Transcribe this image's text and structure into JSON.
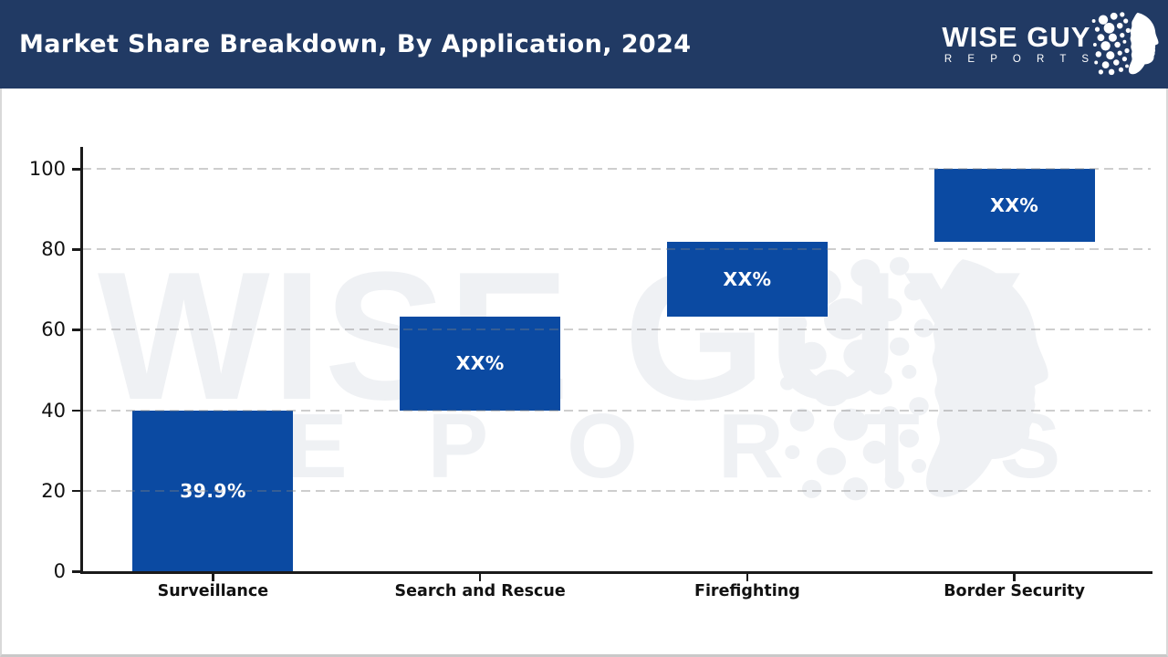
{
  "header": {
    "title": "Market Share Breakdown, By Application, 2024",
    "logo": {
      "primary": "WISE GUY",
      "secondary": "R E P O R T S"
    }
  },
  "watermark": {
    "line1": "WISE GUY",
    "line2": "R E P O R T S"
  },
  "chart_data": {
    "type": "bar",
    "subtype": "waterfall",
    "title": "Market Share Breakdown, By Application, 2024",
    "xlabel": "",
    "ylabel": "",
    "categories": [
      "Surveillance",
      "Search and Rescue",
      "Firefighting",
      "Border Security"
    ],
    "segments": [
      {
        "label": "39.9%",
        "start": 0,
        "end": 39.9
      },
      {
        "label": "XX%",
        "start": 39.9,
        "end": 63.3
      },
      {
        "label": "XX%",
        "start": 63.3,
        "end": 81.9
      },
      {
        "label": "XX%",
        "start": 81.9,
        "end": 100
      }
    ],
    "yticks": [
      0,
      20,
      40,
      60,
      80,
      100
    ],
    "ylim": [
      0,
      103.5
    ],
    "grid": "dashed-horizontal",
    "legend": "none",
    "bar_color": "#0b4aa2",
    "bar_label_color": "#ffffff"
  },
  "colors": {
    "header_bg": "#213a64",
    "header_text": "#ffffff",
    "bar": "#0b4aa2",
    "axis": "#1a1a1a",
    "grid": "#c9c9c9",
    "watermark": "#eff1f4",
    "page_bg": "#ffffff",
    "border": "#d9d9d9"
  }
}
